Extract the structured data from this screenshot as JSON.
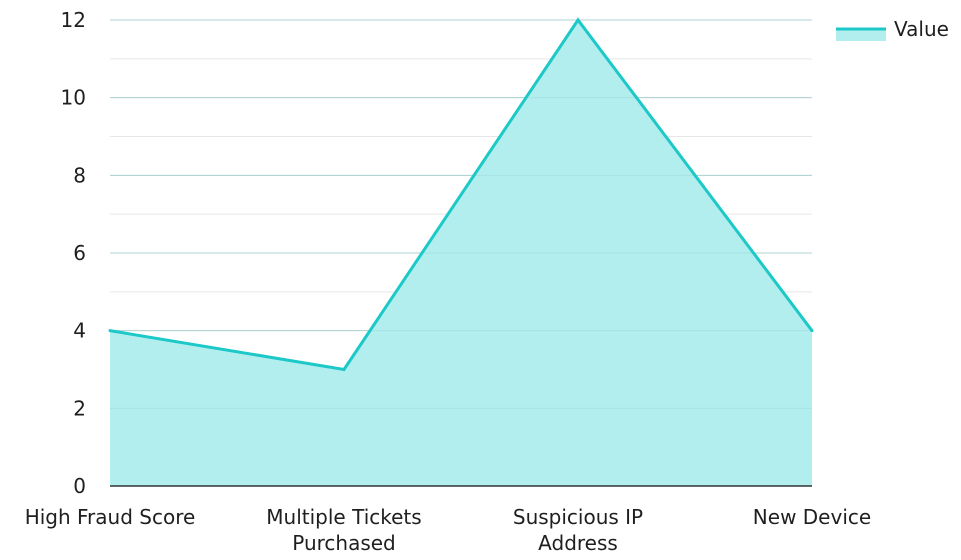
{
  "chart_data": {
    "type": "area",
    "categories": [
      "High Fraud Score",
      "Multiple Tickets Purchased",
      "Suspicious IP Address",
      "New Device"
    ],
    "category_label_lines": [
      [
        "High Fraud Score"
      ],
      [
        "Multiple Tickets",
        "Purchased"
      ],
      [
        "Suspicious IP",
        "Address"
      ],
      [
        "New Device"
      ]
    ],
    "series": [
      {
        "name": "Value",
        "values": [
          4,
          3,
          12,
          4
        ]
      }
    ],
    "ylim": [
      0,
      12
    ],
    "yticks": [
      0,
      2,
      4,
      6,
      8,
      10,
      12
    ],
    "ytick_labels": [
      "0",
      "2",
      "4",
      "6",
      "8",
      "10",
      "12"
    ],
    "grid": true,
    "minor_grid": true,
    "legend_position": "top-right",
    "colors": {
      "line": "#1cc8c8",
      "fill": "#b2eeee",
      "grid": "#d9d9d9",
      "axis": "#333333"
    }
  }
}
